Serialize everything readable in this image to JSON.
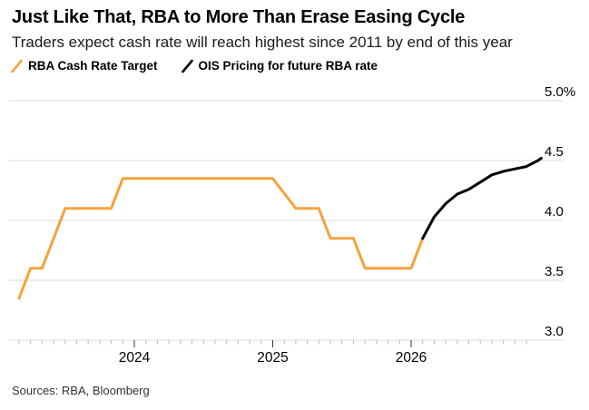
{
  "header": {
    "title": "Just Like That, RBA to More Than Erase Easing Cycle",
    "subtitle": "Traders expect cash rate will reach highest since 2011 by end of this year"
  },
  "legend": {
    "items": [
      {
        "label": "RBA Cash Rate Target",
        "color": "#F7A23B"
      },
      {
        "label": "OIS Pricing for future RBA rate",
        "color": "#000000"
      }
    ]
  },
  "chart_data": {
    "type": "line",
    "unit": "%",
    "title": "Just Like That, RBA to More Than Erase Easing Cycle",
    "x_axis": {
      "year_ticks": [
        2024,
        2025,
        2026
      ],
      "year_labels": [
        "2024",
        "2025",
        "2026"
      ],
      "minor_tick_interval_months": 1,
      "minor_tick_range": [
        "2023-03",
        "2026-11"
      ]
    },
    "y_axis": {
      "ticks": [
        3.0,
        3.5,
        4.0,
        4.5,
        5.0
      ],
      "tick_labels": [
        "3.0",
        "3.5",
        "4.0",
        "4.5",
        "5.0%"
      ],
      "ylim": [
        3.0,
        5.0
      ],
      "grid": true,
      "position": "right"
    },
    "series": [
      {
        "name": "RBA Cash Rate Target",
        "color": "#F7A23B",
        "points": [
          [
            2023.167,
            3.35
          ],
          [
            2023.25,
            3.6
          ],
          [
            2023.333,
            3.6
          ],
          [
            2023.417,
            3.85
          ],
          [
            2023.5,
            4.1
          ],
          [
            2023.833,
            4.1
          ],
          [
            2023.917,
            4.35
          ],
          [
            2025.0,
            4.35
          ],
          [
            2025.167,
            4.1
          ],
          [
            2025.333,
            4.1
          ],
          [
            2025.417,
            3.85
          ],
          [
            2025.583,
            3.85
          ],
          [
            2025.667,
            3.6
          ],
          [
            2026.0,
            3.6
          ],
          [
            2026.083,
            3.85
          ]
        ]
      },
      {
        "name": "OIS Pricing for future RBA rate",
        "color": "#000000",
        "points": [
          [
            2026.083,
            3.85
          ],
          [
            2026.167,
            4.03
          ],
          [
            2026.25,
            4.14
          ],
          [
            2026.333,
            4.22
          ],
          [
            2026.417,
            4.26
          ],
          [
            2026.5,
            4.32
          ],
          [
            2026.583,
            4.38
          ],
          [
            2026.667,
            4.41
          ],
          [
            2026.75,
            4.43
          ],
          [
            2026.833,
            4.45
          ],
          [
            2026.917,
            4.5
          ],
          [
            2026.94,
            4.52
          ]
        ]
      }
    ],
    "colors": {
      "grid": "#d9d9d9",
      "minor_tick": "#b9b9b9",
      "major_tick": "#3a3a3a",
      "axis_text": "#000000"
    }
  },
  "footer": {
    "sources": "Sources: RBA, Bloomberg"
  }
}
